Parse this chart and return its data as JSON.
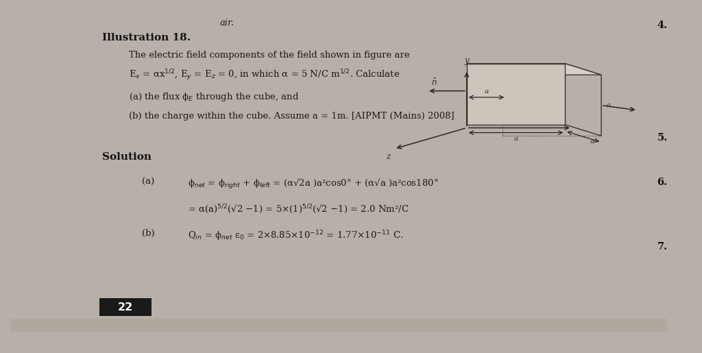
{
  "bg_color": "#b8b0a8",
  "page_color": "#dcdad6",
  "page_color2": "#e8e5e0",
  "text_color": "#1a1818",
  "dark_text": "#111111",
  "air_text": "air.",
  "title_text": "Illustration 18.",
  "intro": "The electric field components of the field shown in figure are",
  "eq1": "E$_x$ = αx$^{1/2}$, E$_y$ = E$_z$ = 0, in which α = 5 N/C m$^{1/2}$. Calculate",
  "qa": "(a) the flux ϕ$_E$ through the cube, and",
  "qb": "(b) the charge within the cube. Assume a = 1m. [AIPMT (Mains) 2008]",
  "solution": "Solution",
  "sol_a_lbl": "(a)",
  "sol_a1": "ϕ$_{net}$ = ϕ$_{right}$ + ϕ$_{left}$ = (α√2a )a²cos0° + (α√a )a²cos180°",
  "sol_a2": "= α(a)$^{5/2}$(√2 −1) = 5×(1)$^{5/2}$(√2 −1) = 2.0 Nm²/C",
  "sol_b_lbl": "(b)",
  "sol_b": "Q$_{in}$ = ϕ$_{net}$ ε$_0$ = 2×8.85×10$^{−12}$ = 1.77×10$^{−11}$ C.",
  "num_4": "4.",
  "num_5": "5.",
  "num_6": "6.",
  "num_7": "7.",
  "num_22": "22",
  "cube_face_front": "#cdc5bc",
  "cube_face_right": "#b8b0a8",
  "cube_face_top": "#d8d0c8",
  "cube_edge": "#3a3530",
  "axis_color": "#2a2520",
  "arrow_color": "#2a2520"
}
